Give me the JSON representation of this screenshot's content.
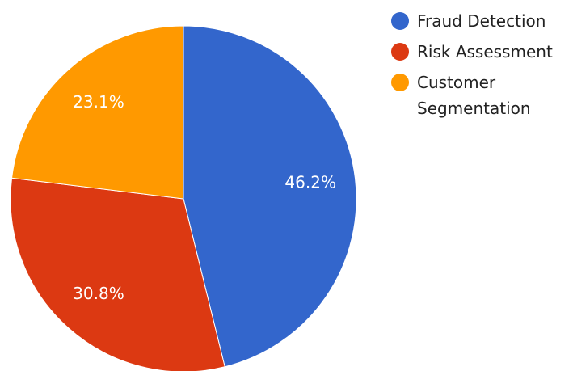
{
  "chart_data": {
    "type": "pie",
    "categories": [
      "Fraud Detection",
      "Risk Assessment",
      "Customer Segmentation"
    ],
    "values": [
      46.2,
      30.8,
      23.1
    ],
    "value_labels": [
      "46.2%",
      "30.8%",
      "23.1%"
    ],
    "colors": [
      "#3366cc",
      "#dc3912",
      "#ff9900"
    ],
    "legend": "right"
  }
}
